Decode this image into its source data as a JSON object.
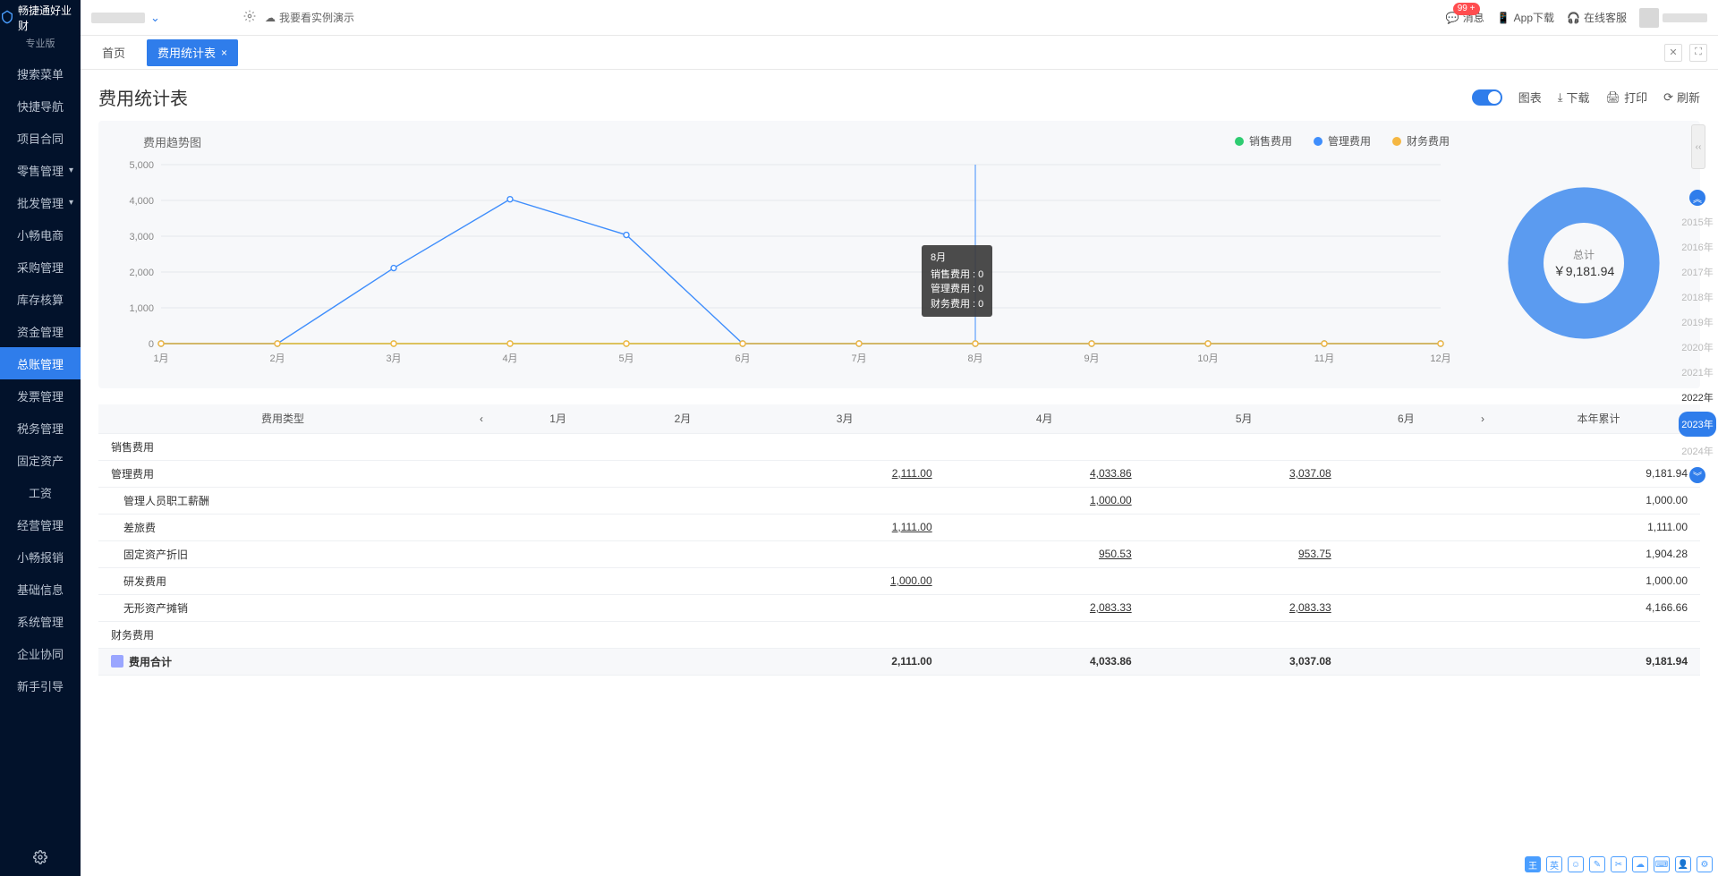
{
  "brand": {
    "name": "畅捷通好业财",
    "edition": "专业版"
  },
  "topbar": {
    "settings_icon": "gear",
    "demo_link": "我要看实例演示",
    "message": {
      "label": "消息",
      "badge": "99 +"
    },
    "app_download": "App下载",
    "online_service": "在线客服"
  },
  "sidebar": {
    "items": [
      {
        "label": "搜索菜单",
        "expandable": false
      },
      {
        "label": "快捷导航",
        "expandable": false
      },
      {
        "label": "项目合同",
        "expandable": false
      },
      {
        "label": "零售管理",
        "expandable": true
      },
      {
        "label": "批发管理",
        "expandable": true
      },
      {
        "label": "小畅电商",
        "expandable": false
      },
      {
        "label": "采购管理",
        "expandable": false
      },
      {
        "label": "库存核算",
        "expandable": false
      },
      {
        "label": "资金管理",
        "expandable": false
      },
      {
        "label": "总账管理",
        "expandable": false,
        "active": true
      },
      {
        "label": "发票管理",
        "expandable": false
      },
      {
        "label": "税务管理",
        "expandable": false
      },
      {
        "label": "固定资产",
        "expandable": false
      },
      {
        "label": "工资",
        "expandable": false
      },
      {
        "label": "经营管理",
        "expandable": false
      },
      {
        "label": "小畅报销",
        "expandable": false
      },
      {
        "label": "基础信息",
        "expandable": false
      },
      {
        "label": "系统管理",
        "expandable": false
      },
      {
        "label": "企业协同",
        "expandable": false
      },
      {
        "label": "新手引导",
        "expandable": false
      }
    ]
  },
  "tabs": [
    {
      "label": "首页",
      "active": false,
      "closable": false
    },
    {
      "label": "费用统计表",
      "active": true,
      "closable": true
    }
  ],
  "page": {
    "title": "费用统计表",
    "actions": {
      "chart_toggle_label": "图表",
      "download_label": "下载",
      "print_label": "打印",
      "refresh_label": "刷新"
    }
  },
  "chart": {
    "title": "费用趋势图",
    "type": "line",
    "x_labels": [
      "1月",
      "2月",
      "3月",
      "4月",
      "5月",
      "6月",
      "7月",
      "8月",
      "9月",
      "10月",
      "11月",
      "12月"
    ],
    "y_ticks": [
      0,
      1000,
      2000,
      3000,
      4000,
      5000
    ],
    "ylim": [
      0,
      5000
    ],
    "series": [
      {
        "name": "销售费用",
        "color": "#2ecc71",
        "values": [
          0,
          0,
          0,
          0,
          0,
          0,
          0,
          0,
          0,
          0,
          0,
          0
        ]
      },
      {
        "name": "管理费用",
        "color": "#3f8efc",
        "values": [
          0,
          0,
          2111,
          4034,
          3037,
          0,
          0,
          0,
          0,
          0,
          0,
          0
        ]
      },
      {
        "name": "财务费用",
        "color": "#f5b742",
        "values": [
          0,
          0,
          0,
          0,
          0,
          0,
          0,
          0,
          0,
          0,
          0,
          0
        ]
      }
    ],
    "grid_color": "#e6e8ec",
    "axis_color": "#cfd3da",
    "background": "#f7f8fa",
    "marker_radius": 3,
    "line_width": 1.4,
    "hover": {
      "x_index": 7,
      "title": "8月",
      "rows": [
        {
          "label": "销售费用",
          "value": "0"
        },
        {
          "label": "管理费用",
          "value": "0"
        },
        {
          "label": "财务费用",
          "value": "0"
        }
      ],
      "crosshair_color": "#3f8efc"
    }
  },
  "donut": {
    "total_label": "总计",
    "total_value": "￥9,181.94",
    "ring_color": "#5b9bf0",
    "ring_thickness": 42,
    "background": "#ffffff"
  },
  "year_rail": {
    "years": [
      "2015年",
      "2016年",
      "2017年",
      "2018年",
      "2019年",
      "2020年",
      "2021年",
      "2022年",
      "2023年",
      "2024年"
    ],
    "current": "2022年",
    "selected": "2023年"
  },
  "table": {
    "header_first": "费用类型",
    "header_last": "本年累计",
    "months": [
      "1月",
      "2月",
      "3月",
      "4月",
      "5月",
      "6月"
    ],
    "rows": [
      {
        "label": "销售费用",
        "indent": 0,
        "cells": [
          "",
          "",
          "",
          "",
          "",
          ""
        ],
        "total": ""
      },
      {
        "label": "管理费用",
        "indent": 0,
        "cells": [
          "",
          "",
          "2,111.00",
          "4,033.86",
          "3,037.08",
          ""
        ],
        "total": "9,181.94",
        "link": true
      },
      {
        "label": "管理人员职工薪酬",
        "indent": 1,
        "cells": [
          "",
          "",
          "",
          "1,000.00",
          "",
          ""
        ],
        "total": "1,000.00",
        "link": true
      },
      {
        "label": "差旅费",
        "indent": 1,
        "cells": [
          "",
          "",
          "1,111.00",
          "",
          "",
          ""
        ],
        "total": "1,111.00",
        "link": true
      },
      {
        "label": "固定资产折旧",
        "indent": 1,
        "cells": [
          "",
          "",
          "",
          "950.53",
          "953.75",
          ""
        ],
        "total": "1,904.28",
        "link": true
      },
      {
        "label": "研发费用",
        "indent": 1,
        "cells": [
          "",
          "",
          "1,000.00",
          "",
          "",
          ""
        ],
        "total": "1,000.00",
        "link": true
      },
      {
        "label": "无形资产摊销",
        "indent": 1,
        "cells": [
          "",
          "",
          "",
          "2,083.33",
          "2,083.33",
          ""
        ],
        "total": "4,166.66",
        "link": true
      },
      {
        "label": "财务费用",
        "indent": 0,
        "cells": [
          "",
          "",
          "",
          "",
          "",
          ""
        ],
        "total": ""
      }
    ],
    "footer": {
      "label": "费用合计",
      "cells": [
        "",
        "",
        "2,111.00",
        "4,033.86",
        "3,037.08",
        ""
      ],
      "total": "9,181.94"
    }
  },
  "ime": {
    "main": "王",
    "lang": "英"
  }
}
